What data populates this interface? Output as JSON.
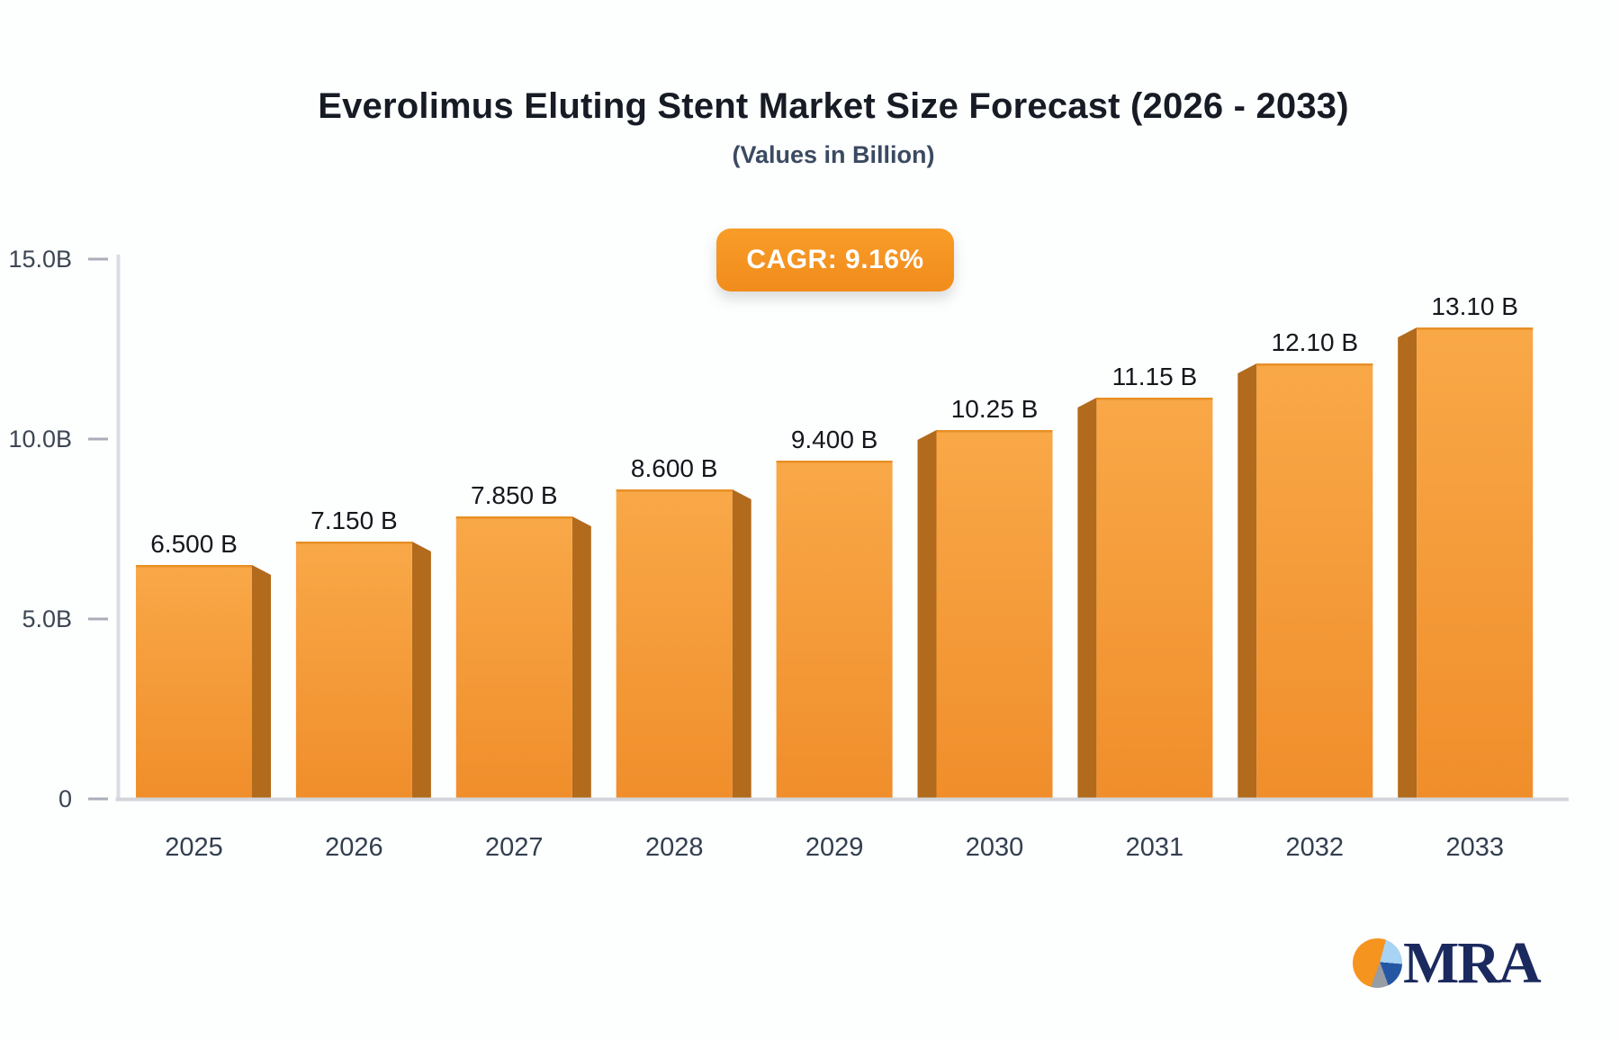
{
  "header": {},
  "badge": {
    "label": "CAGR: 9.16%",
    "color": "#f7941e"
  },
  "chart_data": {
    "type": "bar",
    "title": "Everolimus Eluting Stent Market Size Forecast (2026 - 2033)",
    "subtitle": "(Values in Billion)",
    "categories": [
      "2025",
      "2026",
      "2027",
      "2028",
      "2029",
      "2030",
      "2031",
      "2032",
      "2033"
    ],
    "values": [
      6.5,
      7.15,
      7.85,
      8.6,
      9.4,
      10.25,
      11.15,
      12.1,
      13.1
    ],
    "value_labels": [
      "6.500 B",
      "7.150 B",
      "7.850 B",
      "8.600 B",
      "9.400 B",
      "10.25 B",
      "11.15 B",
      "12.10 B",
      "13.10 B"
    ],
    "xlabel": "",
    "ylabel": "",
    "ylim": [
      0,
      15
    ],
    "yticks": [
      {
        "value": 15,
        "label": "15.0B"
      },
      {
        "value": 10,
        "label": "10.0B"
      },
      {
        "value": 5,
        "label": "5.0B"
      },
      {
        "value": 0,
        "label": "0"
      }
    ],
    "grid": false,
    "legend": null,
    "colors": {
      "bar_top": "#f9a848",
      "bar_bottom": "#f08e2b",
      "bar_side": "#b26a1c",
      "bar_top_edge": "#e88f25",
      "axis_line": "#d9dce1",
      "baseline": "#d2d6dc",
      "tick": "#a9aeb8"
    }
  },
  "logo": {
    "text": "MRA",
    "color": "#1b2a5e",
    "pie_colors": [
      "#f5941f",
      "#a9d3f2",
      "#2456a4",
      "#989ca4"
    ]
  }
}
